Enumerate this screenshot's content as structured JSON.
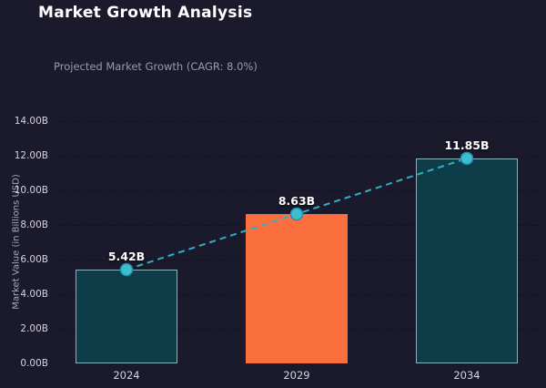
{
  "header": {
    "title": "Market Growth Analysis",
    "subtitle": "Projected Market Growth (CAGR: 8.0%)"
  },
  "chart_data": {
    "type": "bar",
    "categories": [
      "2024",
      "2029",
      "2034"
    ],
    "values": [
      5.42,
      8.63,
      11.85
    ],
    "value_labels": [
      "5.42B",
      "8.63B",
      "11.85B"
    ],
    "series": [
      {
        "name": "market-value-bars",
        "type": "bar",
        "values": [
          5.42,
          8.63,
          11.85
        ]
      },
      {
        "name": "growth-trend-line",
        "type": "line",
        "values": [
          5.42,
          8.63,
          11.85
        ]
      }
    ],
    "title": "Market Growth Analysis",
    "subtitle": "Projected Market Growth (CAGR: 8.0%)",
    "xlabel": "",
    "ylabel": "Market Value (in Billions USD)",
    "ylim": [
      0,
      14
    ],
    "ytick_step": 2,
    "ytick_labels": [
      "0.00B",
      "2.00B",
      "4.00B",
      "6.00B",
      "8.00B",
      "10.00B",
      "12.00B",
      "14.00B"
    ],
    "grid": "faint dashed horizontal lines",
    "legend": "none",
    "colors": {
      "background": "#1b1a2d",
      "bar_fills": [
        "#0e3c49",
        "#fb6e3e",
        "#0e3c49"
      ],
      "bar_borders": [
        "#8db3ba",
        "#fb6e3e",
        "#8db3ba"
      ],
      "line": "#2fb0c4",
      "marker_fill": "#3dbdd0",
      "marker_stroke": "#1f92a8",
      "value_label": "#ffffff",
      "tick_label": "#d4d4de",
      "axis_label": "#a9a9b6",
      "subtitle": "#9b9ba8",
      "title": "#ffffff",
      "gridline": "#131223"
    }
  }
}
